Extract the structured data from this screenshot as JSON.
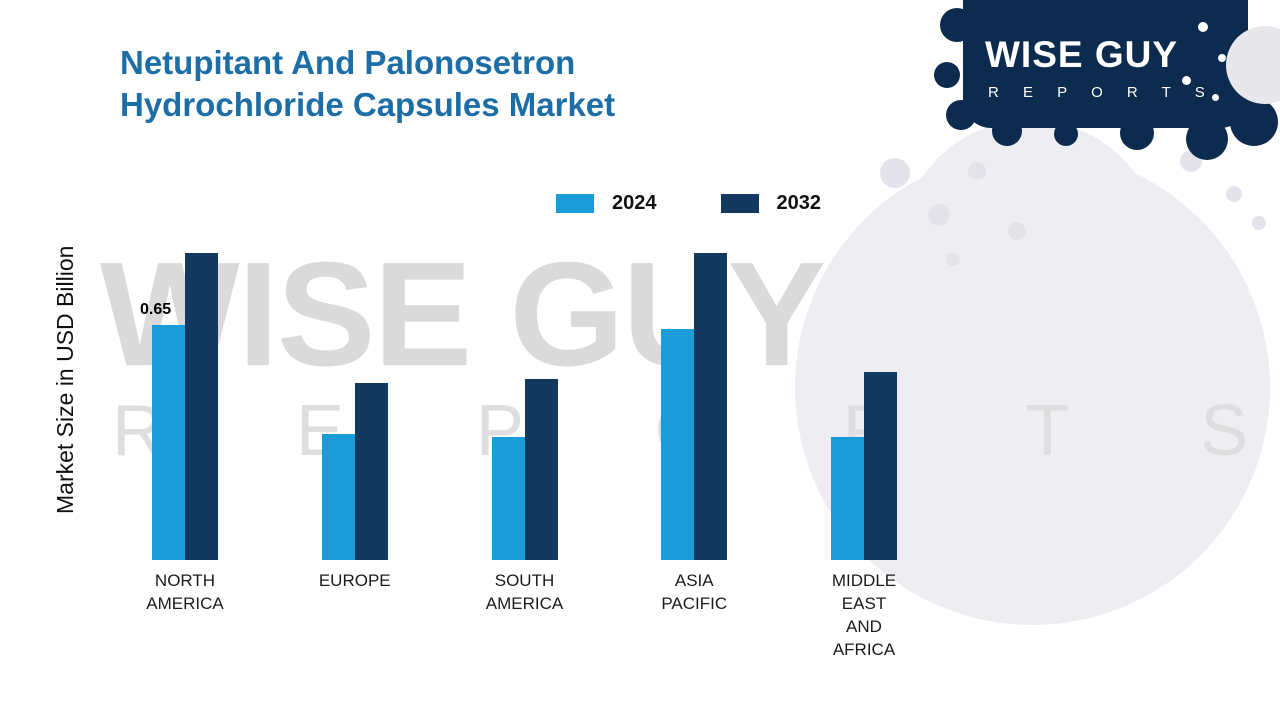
{
  "title": {
    "line1": "Netupitant And Palonosetron",
    "line2": "Hydrochloride Capsules Market",
    "color": "#1d6ea6"
  },
  "logo": {
    "name": "WISE GUY",
    "sub": "R E P O R T S",
    "bg": "#0d2b4e"
  },
  "watermark": {
    "line1": "WISE GUY",
    "line2": "R E P O R T S"
  },
  "legend": {
    "items": [
      {
        "label": "2024",
        "color": "#1b9cd8"
      },
      {
        "label": "2032",
        "color": "#143961"
      }
    ]
  },
  "chart_data": {
    "type": "bar",
    "title": "Netupitant And Palonosetron Hydrochloride Capsules Market",
    "ylabel": "Market Size in USD Billion",
    "xlabel": "",
    "categories": [
      "NORTH AMERICA",
      "EUROPE",
      "SOUTH AMERICA",
      "ASIA PACIFIC",
      "MIDDLE EAST AND AFRICA"
    ],
    "series": [
      {
        "name": "2024",
        "color": "#1b9cd8",
        "values": [
          0.65,
          0.35,
          0.34,
          0.64,
          0.34
        ]
      },
      {
        "name": "2032",
        "color": "#143961",
        "values": [
          0.85,
          0.49,
          0.5,
          0.85,
          0.52
        ]
      }
    ],
    "annotations": [
      "0.65",
      "",
      "",
      "",
      ""
    ],
    "ylim": [
      0,
      0.9
    ],
    "grid": false,
    "legend_position": "top-center"
  }
}
